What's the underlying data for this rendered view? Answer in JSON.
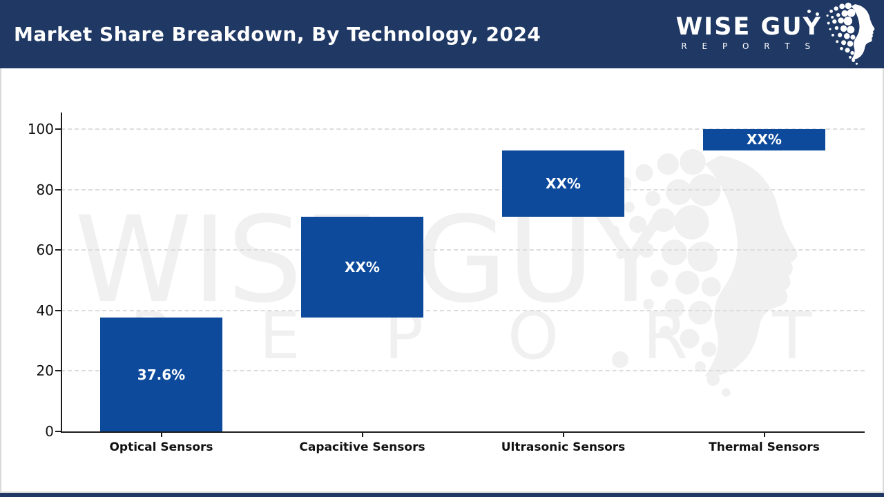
{
  "header": {
    "title": "Market Share Breakdown, By Technology, 2024",
    "bg_color": "#1f3864",
    "logo": {
      "wordmark": "WISE GUY",
      "subline": "R E P O R T S",
      "head_icon": "dotted-head-profile"
    }
  },
  "watermark": {
    "line1": "WISE GUY",
    "line2": "R E P O R T S",
    "color": "#f0f0f0",
    "head_icon": "dotted-head-profile"
  },
  "chart_data": {
    "type": "bar",
    "variant": "floating-segment (waterfall-style market share)",
    "title": "Market Share Breakdown, By Technology, 2024",
    "categories": [
      "Optical Sensors",
      "Capacitive Sensors",
      "Ultrasonic Sensors",
      "Thermal Sensors"
    ],
    "segments": [
      {
        "category": "Optical Sensors",
        "start": 0,
        "end": 37.6,
        "label": "37.6%"
      },
      {
        "category": "Capacitive Sensors",
        "start": 37.6,
        "end": 71,
        "label": "XX%"
      },
      {
        "category": "Ultrasonic Sensors",
        "start": 71,
        "end": 93,
        "label": "XX%"
      },
      {
        "category": "Thermal Sensors",
        "start": 93,
        "end": 100,
        "label": "XX%"
      }
    ],
    "xlabel": "",
    "ylabel": "",
    "yticks": [
      0,
      20,
      40,
      60,
      80,
      100
    ],
    "ylim": [
      0,
      105
    ],
    "grid": "horizontal dashed",
    "legend": "none",
    "bar_color": "#0d4a9c",
    "bar_label_color": "#ffffff",
    "axis_color": "#1c1c1c",
    "gridline_color": "#dcdcdc",
    "tick_label_color": "#111111"
  }
}
